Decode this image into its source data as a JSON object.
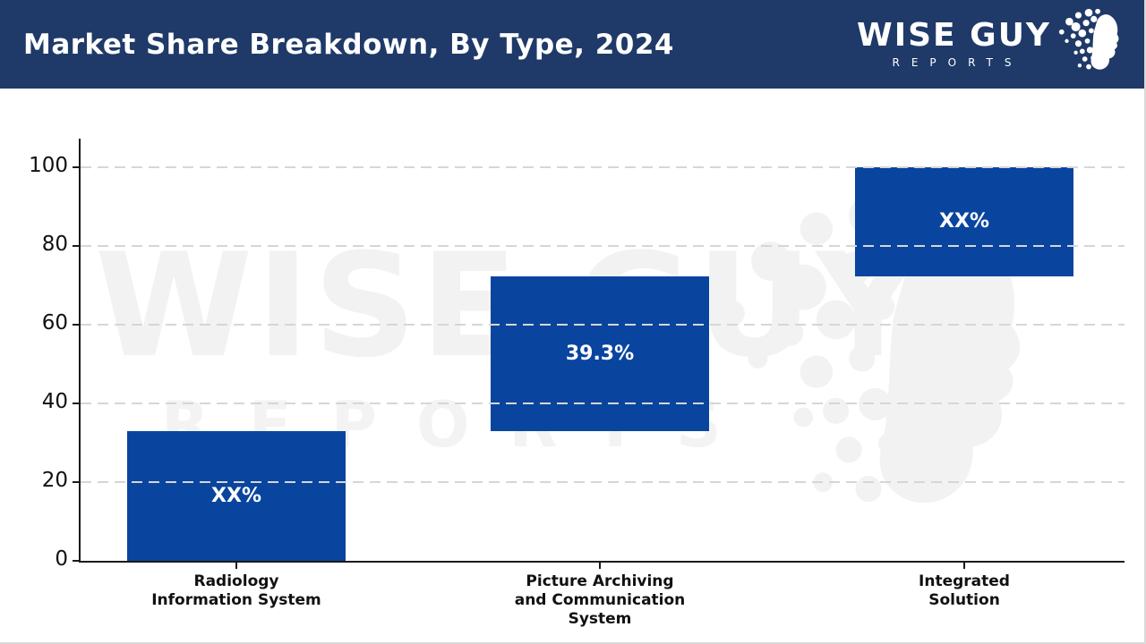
{
  "header": {
    "title": "Market Share Breakdown, By Type, 2024",
    "logo": {
      "line1": "WISE GUY",
      "line2": "REPORTS"
    }
  },
  "watermark": {
    "line1": "WISE GUY",
    "line2": "REPORTS"
  },
  "chart_data": {
    "type": "bar",
    "subtype": "floating-waterfall",
    "title": "Market Share Breakdown, By Type, 2024",
    "categories": [
      "Radiology Information System",
      "Picture Archiving and Communication System",
      "Integrated Solution"
    ],
    "category_lines": [
      [
        "Radiology",
        "Information System"
      ],
      [
        "Picture Archiving",
        "and Communication",
        "System"
      ],
      [
        "Integrated",
        "Solution"
      ]
    ],
    "series": [
      {
        "name": "Market Share (%)",
        "segments": [
          {
            "category": "Radiology Information System",
            "start": 0,
            "end": 33,
            "label": "XX%"
          },
          {
            "category": "Picture Archiving and Communication System",
            "start": 33,
            "end": 72.3,
            "label": "39.3%"
          },
          {
            "category": "Integrated Solution",
            "start": 72.3,
            "end": 100,
            "label": "XX%"
          }
        ]
      }
    ],
    "yticks": [
      0,
      20,
      40,
      60,
      80,
      100
    ],
    "ylim": [
      0,
      107
    ],
    "xlabel": "",
    "ylabel": "",
    "grid": "horizontal-dashed-over-bars",
    "legend": "none"
  },
  "colors": {
    "header_bg": "#1f3a68",
    "bar_fill": "#09459e",
    "bar_label": "#ffffff",
    "axis": "#1a1a1a",
    "grid": "#d6d6d6",
    "tick_label": "#111111",
    "watermark": "#f2f2f2",
    "page_border": "#d9d9d9"
  }
}
